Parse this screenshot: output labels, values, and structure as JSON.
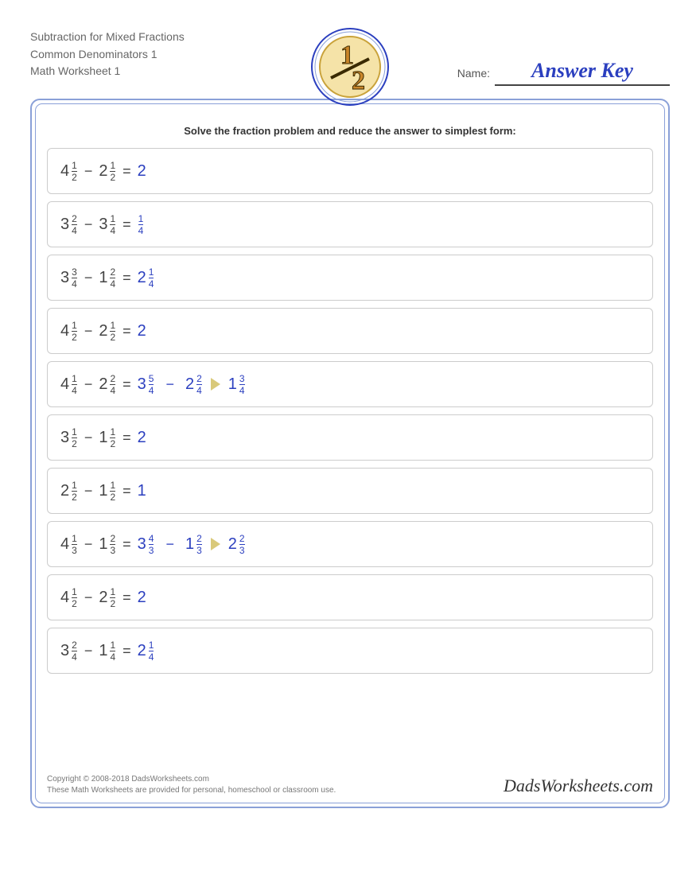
{
  "header": {
    "title1": "Subtraction for Mixed Fractions",
    "title2": "Common Denominators 1",
    "title3": "Math Worksheet 1",
    "name_label": "Name:",
    "answer_key": "Answer Key"
  },
  "logo": {
    "outer_stroke": "#2b3fbf",
    "inner_fill": "#f5b94a",
    "text_fill": "#c9862a",
    "text_stroke": "#3a2a00"
  },
  "instructions": "Solve the fraction problem and reduce the answer to simplest form:",
  "colors": {
    "frame_border": "#8aa0d8",
    "row_border": "#cccccc",
    "text": "#444444",
    "answer": "#2b3fbf",
    "triangle": "#d9c97a"
  },
  "operator": "−",
  "equals": "=",
  "problems": [
    {
      "a": {
        "whole": "4",
        "num": "1",
        "den": "2"
      },
      "b": {
        "whole": "2",
        "num": "1",
        "den": "2"
      },
      "answer": [
        {
          "type": "whole",
          "value": "2"
        }
      ]
    },
    {
      "a": {
        "whole": "3",
        "num": "2",
        "den": "4"
      },
      "b": {
        "whole": "3",
        "num": "1",
        "den": "4"
      },
      "answer": [
        {
          "type": "frac",
          "num": "1",
          "den": "4"
        }
      ]
    },
    {
      "a": {
        "whole": "3",
        "num": "3",
        "den": "4"
      },
      "b": {
        "whole": "1",
        "num": "2",
        "den": "4"
      },
      "answer": [
        {
          "type": "mixed",
          "whole": "2",
          "num": "1",
          "den": "4"
        }
      ]
    },
    {
      "a": {
        "whole": "4",
        "num": "1",
        "den": "2"
      },
      "b": {
        "whole": "2",
        "num": "1",
        "den": "2"
      },
      "answer": [
        {
          "type": "whole",
          "value": "2"
        }
      ]
    },
    {
      "a": {
        "whole": "4",
        "num": "1",
        "den": "4"
      },
      "b": {
        "whole": "2",
        "num": "2",
        "den": "4"
      },
      "answer": [
        {
          "type": "mixed",
          "whole": "3",
          "num": "5",
          "den": "4"
        },
        {
          "type": "op",
          "value": "−"
        },
        {
          "type": "mixed",
          "whole": "2",
          "num": "2",
          "den": "4"
        },
        {
          "type": "tri"
        },
        {
          "type": "mixed",
          "whole": "1",
          "num": "3",
          "den": "4"
        }
      ]
    },
    {
      "a": {
        "whole": "3",
        "num": "1",
        "den": "2"
      },
      "b": {
        "whole": "1",
        "num": "1",
        "den": "2"
      },
      "answer": [
        {
          "type": "whole",
          "value": "2"
        }
      ]
    },
    {
      "a": {
        "whole": "2",
        "num": "1",
        "den": "2"
      },
      "b": {
        "whole": "1",
        "num": "1",
        "den": "2"
      },
      "answer": [
        {
          "type": "whole",
          "value": "1"
        }
      ]
    },
    {
      "a": {
        "whole": "4",
        "num": "1",
        "den": "3"
      },
      "b": {
        "whole": "1",
        "num": "2",
        "den": "3"
      },
      "answer": [
        {
          "type": "mixed",
          "whole": "3",
          "num": "4",
          "den": "3"
        },
        {
          "type": "op",
          "value": "−"
        },
        {
          "type": "mixed",
          "whole": "1",
          "num": "2",
          "den": "3"
        },
        {
          "type": "tri"
        },
        {
          "type": "mixed",
          "whole": "2",
          "num": "2",
          "den": "3"
        }
      ]
    },
    {
      "a": {
        "whole": "4",
        "num": "1",
        "den": "2"
      },
      "b": {
        "whole": "2",
        "num": "1",
        "den": "2"
      },
      "answer": [
        {
          "type": "whole",
          "value": "2"
        }
      ]
    },
    {
      "a": {
        "whole": "3",
        "num": "2",
        "den": "4"
      },
      "b": {
        "whole": "1",
        "num": "1",
        "den": "4"
      },
      "answer": [
        {
          "type": "mixed",
          "whole": "2",
          "num": "1",
          "den": "4"
        }
      ]
    }
  ],
  "footer": {
    "copyright": "Copyright © 2008-2018 DadsWorksheets.com",
    "note": "These Math Worksheets are provided for personal, homeschool or classroom use.",
    "brand": "DadsWorksheets.com"
  }
}
